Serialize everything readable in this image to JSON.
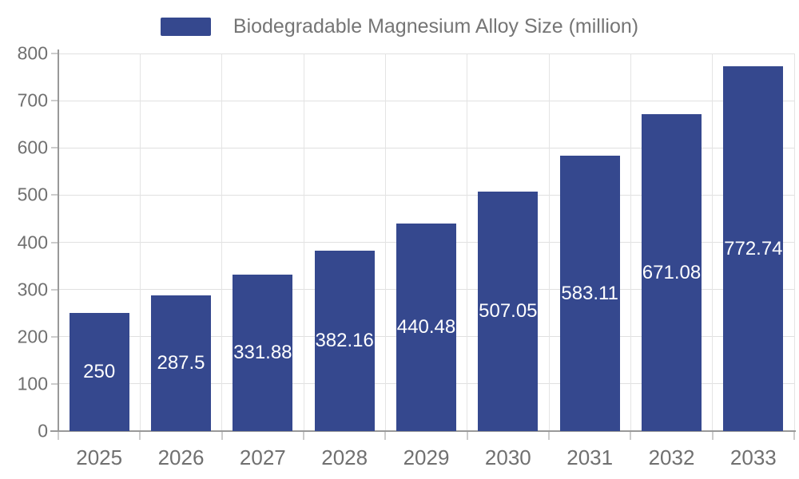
{
  "chart_data": {
    "type": "bar",
    "title": "",
    "legend_label": "Biodegradable Magnesium Alloy Size (million)",
    "legend_position": "top",
    "categories": [
      "2025",
      "2026",
      "2027",
      "2028",
      "2029",
      "2030",
      "2031",
      "2032",
      "2033"
    ],
    "series": [
      {
        "name": "Biodegradable Magnesium Alloy Size (million)",
        "values": [
          250,
          287.5,
          331.88,
          382.16,
          440.48,
          507.05,
          583.11,
          671.08,
          772.74
        ],
        "value_labels": [
          "250",
          "287.5",
          "331.88",
          "382.16",
          "440.48",
          "507.05",
          "583.11",
          "671.08",
          "772.74"
        ]
      }
    ],
    "xlabel": "",
    "ylabel": "",
    "ylim": [
      0,
      800
    ],
    "y_ticks": [
      0,
      100,
      200,
      300,
      400,
      500,
      600,
      700,
      800
    ],
    "grid": true,
    "colors": {
      "bar": "#35488E",
      "value_label": "#ffffff",
      "axis_text": "#707070",
      "legend_text": "#757575",
      "axis_line": "#999999",
      "grid_h": "#e0e0e0",
      "grid_v": "#e4e4e4",
      "tick": "#cccccc",
      "background": "#ffffff"
    }
  }
}
